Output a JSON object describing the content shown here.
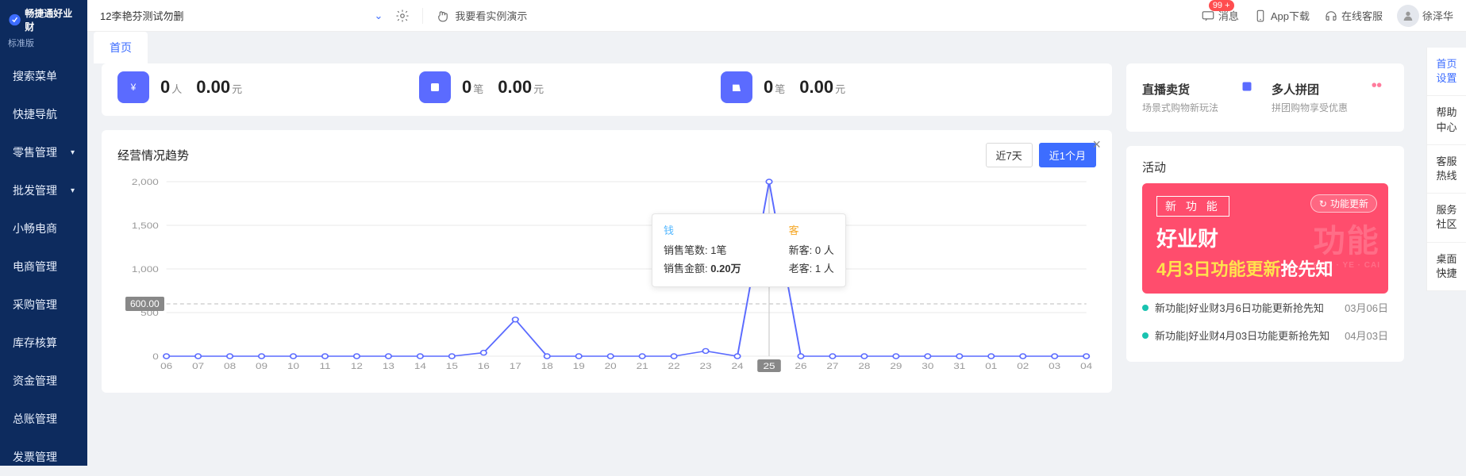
{
  "brand": {
    "name": "畅捷通好业财",
    "edition": "标准版"
  },
  "sidebar": {
    "items": [
      {
        "label": "搜索菜单",
        "has_children": false
      },
      {
        "label": "快捷导航",
        "has_children": false
      },
      {
        "label": "零售管理",
        "has_children": true
      },
      {
        "label": "批发管理",
        "has_children": true
      },
      {
        "label": "小畅电商",
        "has_children": false
      },
      {
        "label": "电商管理",
        "has_children": false
      },
      {
        "label": "采购管理",
        "has_children": false
      },
      {
        "label": "库存核算",
        "has_children": false
      },
      {
        "label": "资金管理",
        "has_children": false
      },
      {
        "label": "总账管理",
        "has_children": false
      },
      {
        "label": "发票管理",
        "has_children": false
      }
    ]
  },
  "topbar": {
    "org": "12李艳芬测试勿删",
    "demo": "我要看实例演示",
    "msg_label": "消息",
    "msg_badge": "99 +",
    "app_label": "App下载",
    "service_label": "在线客服",
    "user": "徐泽华"
  },
  "tab": {
    "home": "首页"
  },
  "stats": {
    "a": {
      "icon_bg": "#5b6bff",
      "val1": "0",
      "unit1": "人",
      "val2": "0.00",
      "unit2": "元"
    },
    "b": {
      "icon_bg": "#5b6bff",
      "val1": "0",
      "unit1": "笔",
      "val2": "0.00",
      "unit2": "元"
    },
    "c": {
      "icon_bg": "#5b6bff",
      "val1": "0",
      "unit1": "笔",
      "val2": "0.00",
      "unit2": "元"
    }
  },
  "chart": {
    "title": "经营情况趋势",
    "range_7d": "近7天",
    "range_1m": "近1个月",
    "active_range": "1m",
    "ylim": [
      0,
      2000
    ],
    "ytick_step": 500,
    "yticks": [
      "0",
      "500",
      "1,000",
      "1,500",
      "2,000"
    ],
    "guide_value": 600,
    "guide_label": "600.00",
    "x_labels": [
      "06",
      "07",
      "08",
      "09",
      "10",
      "11",
      "12",
      "13",
      "14",
      "15",
      "16",
      "17",
      "18",
      "19",
      "20",
      "21",
      "22",
      "23",
      "24",
      "25",
      "26",
      "27",
      "28",
      "29",
      "30",
      "31",
      "01",
      "02",
      "03",
      "04"
    ],
    "values": [
      0,
      0,
      0,
      0,
      0,
      0,
      0,
      0,
      0,
      0,
      40,
      420,
      0,
      0,
      0,
      0,
      0,
      60,
      0,
      2000,
      0,
      0,
      0,
      0,
      0,
      0,
      0,
      0,
      0,
      0
    ],
    "line_color": "#5b6bff",
    "grid_color": "#e8e8e8",
    "marker_fill": "#ffffff",
    "hover_index": 19,
    "hover_label": "25",
    "hover_bg": "#888888",
    "hover_fg": "#ffffff",
    "tooltip": {
      "money_header": "钱",
      "cust_header": "客",
      "row1_label": "销售笔数:",
      "row1_val": "1笔",
      "row2_label": "销售金额:",
      "row2_val": "0.20万",
      "row3_label": "新客:",
      "row3_val": "0 人",
      "row4_label": "老客:",
      "row4_val": "1 人"
    },
    "background_color": "#ffffff"
  },
  "promos": {
    "a": {
      "title": "直播卖货",
      "desc": "场景式购物新玩法",
      "icon_color": "#5b6bff"
    },
    "b": {
      "title": "多人拼团",
      "desc": "拼团购物享受优惠",
      "icon_color": "#ff7b9c"
    }
  },
  "activity": {
    "title": "活动",
    "banner": {
      "bg": "#ff4d6d",
      "tag": "新 功 能",
      "update_pill": "功能更新",
      "line1": "好业财",
      "line2_a": "4月3日功能更新",
      "line2_b": "抢先知",
      "ghost": "功能",
      "ghost_sub": "HAO · YE · CAI"
    },
    "items": [
      {
        "dot": "#19c3b0",
        "label": "新功能|好业财3月6日功能更新抢先知",
        "date": "03月06日"
      },
      {
        "dot": "#19c3b0",
        "label": "新功能|好业财4月03日功能更新抢先知",
        "date": "04月03日"
      }
    ]
  },
  "rail": {
    "items": [
      {
        "label": "首页设置",
        "active": true
      },
      {
        "label": "帮助中心"
      },
      {
        "label": "客服热线"
      },
      {
        "label": "服务社区"
      },
      {
        "label": "桌面快捷"
      }
    ]
  }
}
